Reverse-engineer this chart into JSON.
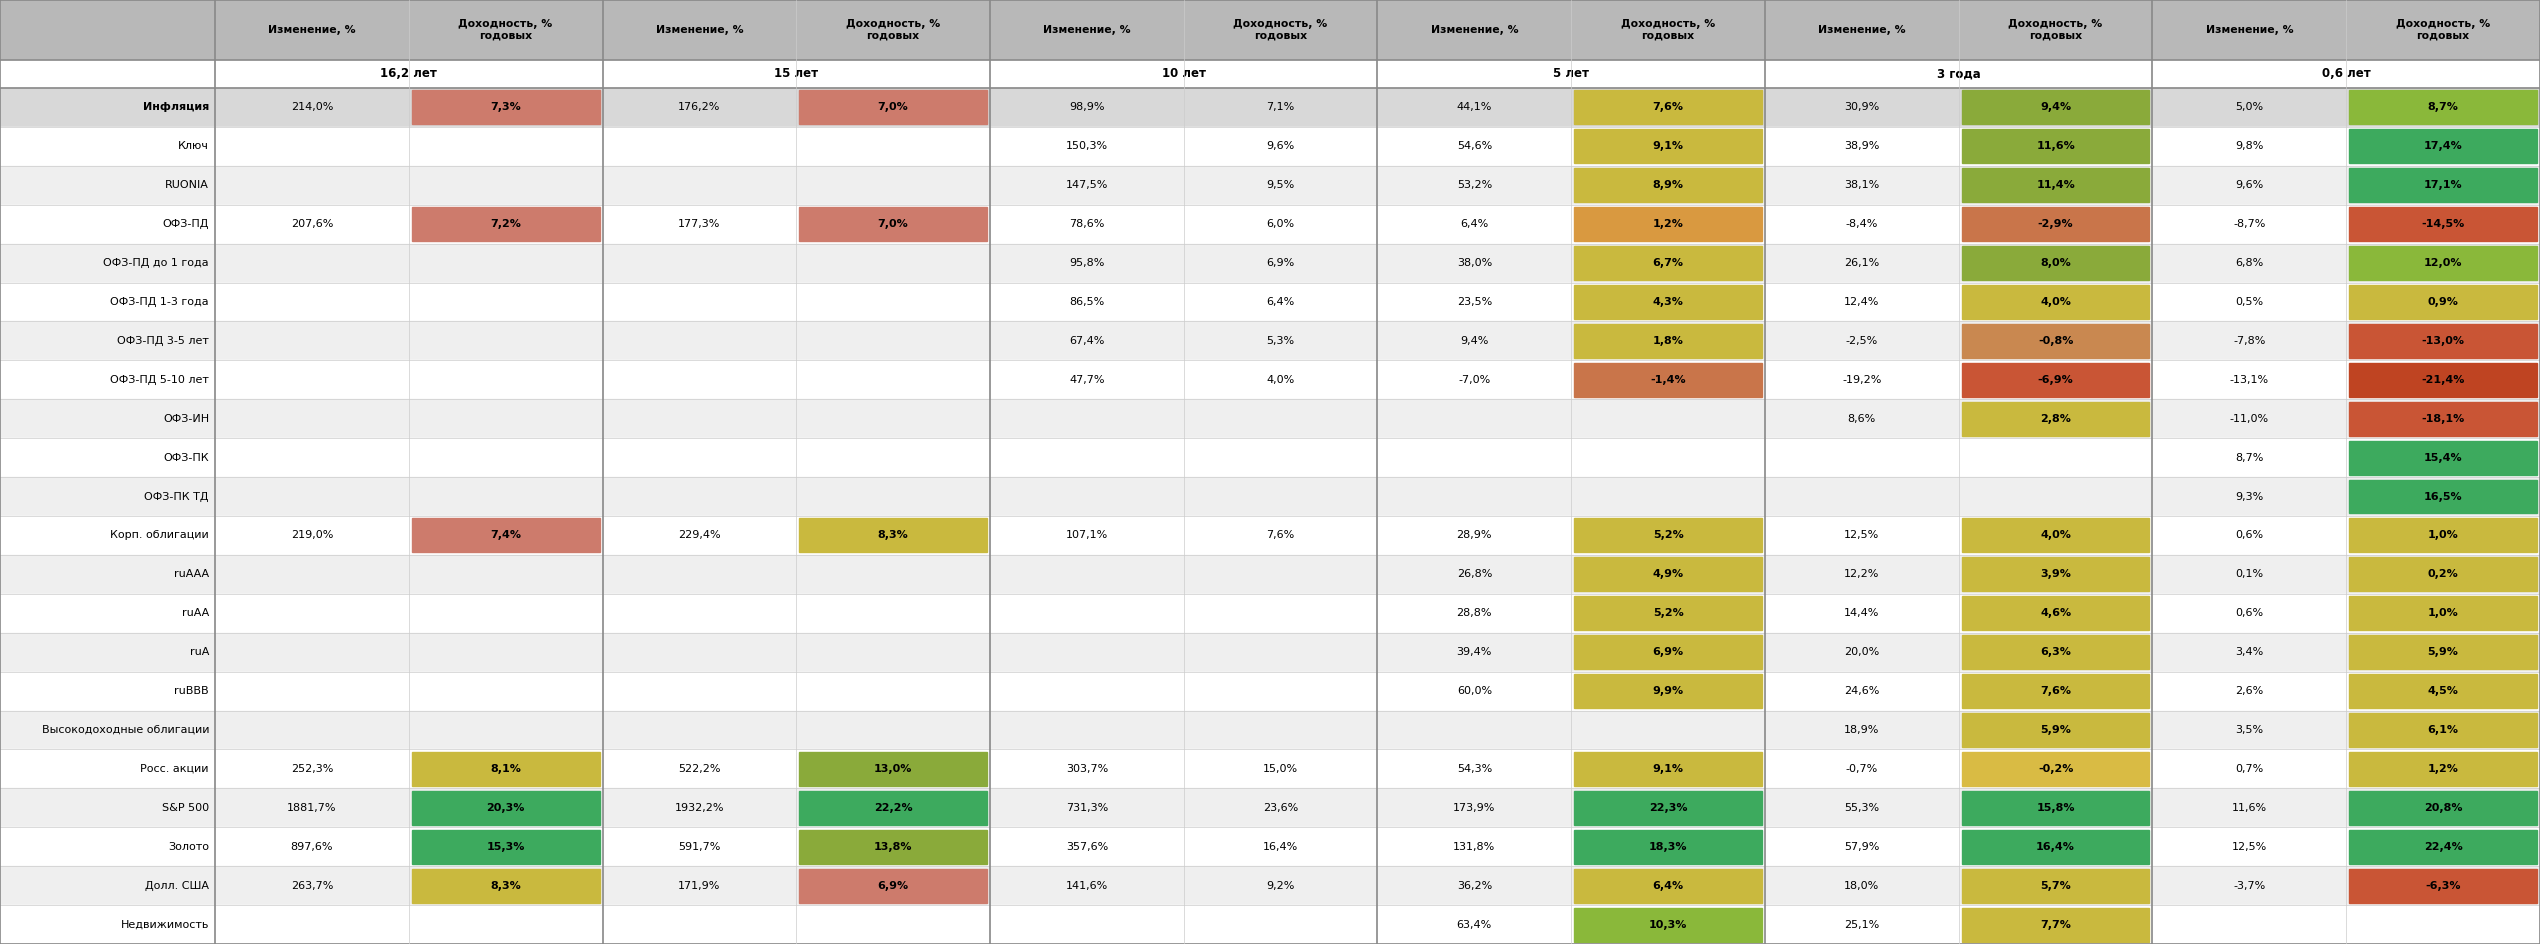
{
  "col_groups": [
    {
      "label": "16,2 лет"
    },
    {
      "label": "15 лет"
    },
    {
      "label": "10 лет"
    },
    {
      "label": "5 лет"
    },
    {
      "label": "3 года"
    },
    {
      "label": "0,6 лет"
    }
  ],
  "header_col1": "Изменение, %",
  "header_col2": "Доходность, %\nгодовых",
  "rows": [
    {
      "name": "Инфляция",
      "bold": true,
      "data": [
        "214,0%",
        "7,3%",
        "176,2%",
        "7,0%",
        "98,9%",
        "7,1%",
        "44,1%",
        "7,6%",
        "30,9%",
        "9,4%",
        "5,0%",
        "8,7%"
      ],
      "colors": [
        "",
        "#cd7b6c",
        "",
        "#cd7b6c",
        "",
        "",
        "",
        "#c9b93e",
        "",
        "#8aaa3a",
        "",
        "#8ab83a"
      ]
    },
    {
      "name": "Ключ",
      "bold": false,
      "data": [
        "",
        "",
        "",
        "",
        "150,3%",
        "9,6%",
        "54,6%",
        "9,1%",
        "38,9%",
        "11,6%",
        "9,8%",
        "17,4%"
      ],
      "colors": [
        "",
        "",
        "",
        "",
        "",
        "",
        "",
        "#c9b93e",
        "",
        "#8aaa3a",
        "",
        "#3daa5e"
      ]
    },
    {
      "name": "RUONIA",
      "bold": false,
      "data": [
        "",
        "",
        "",
        "",
        "147,5%",
        "9,5%",
        "53,2%",
        "8,9%",
        "38,1%",
        "11,4%",
        "9,6%",
        "17,1%"
      ],
      "colors": [
        "",
        "",
        "",
        "",
        "",
        "",
        "",
        "#c9b93e",
        "",
        "#8aaa3a",
        "",
        "#3daa5e"
      ]
    },
    {
      "name": "ОФЗ-ПД",
      "bold": false,
      "data": [
        "207,6%",
        "7,2%",
        "177,3%",
        "7,0%",
        "78,6%",
        "6,0%",
        "6,4%",
        "1,2%",
        "-8,4%",
        "-2,9%",
        "-8,7%",
        "-14,5%"
      ],
      "colors": [
        "",
        "#cd7b6c",
        "",
        "#cd7b6c",
        "",
        "",
        "",
        "#d99940",
        "",
        "#c9754a",
        "",
        "#c95535"
      ]
    },
    {
      "name": "ОФЗ-ПД до 1 года",
      "bold": false,
      "data": [
        "",
        "",
        "",
        "",
        "95,8%",
        "6,9%",
        "38,0%",
        "6,7%",
        "26,1%",
        "8,0%",
        "6,8%",
        "12,0%"
      ],
      "colors": [
        "",
        "",
        "",
        "",
        "",
        "",
        "",
        "#c9b93e",
        "",
        "#8aaa3a",
        "",
        "#8ab83a"
      ]
    },
    {
      "name": "ОФЗ-ПД 1-3 года",
      "bold": false,
      "data": [
        "",
        "",
        "",
        "",
        "86,5%",
        "6,4%",
        "23,5%",
        "4,3%",
        "12,4%",
        "4,0%",
        "0,5%",
        "0,9%"
      ],
      "colors": [
        "",
        "",
        "",
        "",
        "",
        "",
        "",
        "#c9b93e",
        "",
        "#c9b93e",
        "",
        "#c9b93e"
      ]
    },
    {
      "name": "ОФЗ-ПД 3-5 лет",
      "bold": false,
      "data": [
        "",
        "",
        "",
        "",
        "67,4%",
        "5,3%",
        "9,4%",
        "1,8%",
        "-2,5%",
        "-0,8%",
        "-7,8%",
        "-13,0%"
      ],
      "colors": [
        "",
        "",
        "",
        "",
        "",
        "",
        "",
        "#c9b93e",
        "",
        "#c98850",
        "",
        "#c95535"
      ]
    },
    {
      "name": "ОФЗ-ПД 5-10 лет",
      "bold": false,
      "data": [
        "",
        "",
        "",
        "",
        "47,7%",
        "4,0%",
        "-7,0%",
        "-1,4%",
        "-19,2%",
        "-6,9%",
        "-13,1%",
        "-21,4%"
      ],
      "colors": [
        "",
        "",
        "",
        "",
        "",
        "",
        "",
        "#c9754a",
        "",
        "#c95535",
        "",
        "#bf4422"
      ]
    },
    {
      "name": "ОФЗ-ИН",
      "bold": false,
      "data": [
        "",
        "",
        "",
        "",
        "",
        "",
        "",
        "",
        "8,6%",
        "2,8%",
        "-11,0%",
        "-18,1%"
      ],
      "colors": [
        "",
        "",
        "",
        "",
        "",
        "",
        "",
        "",
        "",
        "#c9b93e",
        "",
        "#c95535"
      ]
    },
    {
      "name": "ОФЗ-ПК",
      "bold": false,
      "data": [
        "",
        "",
        "",
        "",
        "",
        "",
        "",
        "",
        "",
        "",
        "8,7%",
        "15,4%"
      ],
      "colors": [
        "",
        "",
        "",
        "",
        "",
        "",
        "",
        "",
        "",
        "",
        "",
        "#3daa5e"
      ]
    },
    {
      "name": "ОФЗ-ПК ТД",
      "bold": false,
      "data": [
        "",
        "",
        "",
        "",
        "",
        "",
        "",
        "",
        "",
        "",
        "9,3%",
        "16,5%"
      ],
      "colors": [
        "",
        "",
        "",
        "",
        "",
        "",
        "",
        "",
        "",
        "",
        "",
        "#3daa5e"
      ]
    },
    {
      "name": "Корп. облигации",
      "bold": false,
      "data": [
        "219,0%",
        "7,4%",
        "229,4%",
        "8,3%",
        "107,1%",
        "7,6%",
        "28,9%",
        "5,2%",
        "12,5%",
        "4,0%",
        "0,6%",
        "1,0%"
      ],
      "colors": [
        "",
        "#cd7b6c",
        "",
        "#c9b93e",
        "",
        "",
        "",
        "#c9b93e",
        "",
        "#c9b93e",
        "",
        "#c9b93e"
      ]
    },
    {
      "name": "ruAAA",
      "bold": false,
      "data": [
        "",
        "",
        "",
        "",
        "",
        "",
        "26,8%",
        "4,9%",
        "12,2%",
        "3,9%",
        "0,1%",
        "0,2%"
      ],
      "colors": [
        "",
        "",
        "",
        "",
        "",
        "",
        "",
        "#c9b93e",
        "",
        "#c9b93e",
        "",
        "#c9b93e"
      ]
    },
    {
      "name": "ruAA",
      "bold": false,
      "data": [
        "",
        "",
        "",
        "",
        "",
        "",
        "28,8%",
        "5,2%",
        "14,4%",
        "4,6%",
        "0,6%",
        "1,0%"
      ],
      "colors": [
        "",
        "",
        "",
        "",
        "",
        "",
        "",
        "#c9b93e",
        "",
        "#c9b93e",
        "",
        "#c9b93e"
      ]
    },
    {
      "name": "ruA",
      "bold": false,
      "data": [
        "",
        "",
        "",
        "",
        "",
        "",
        "39,4%",
        "6,9%",
        "20,0%",
        "6,3%",
        "3,4%",
        "5,9%"
      ],
      "colors": [
        "",
        "",
        "",
        "",
        "",
        "",
        "",
        "#c9b93e",
        "",
        "#c9b93e",
        "",
        "#c9b93e"
      ]
    },
    {
      "name": "ruBBB",
      "bold": false,
      "data": [
        "",
        "",
        "",
        "",
        "",
        "",
        "60,0%",
        "9,9%",
        "24,6%",
        "7,6%",
        "2,6%",
        "4,5%"
      ],
      "colors": [
        "",
        "",
        "",
        "",
        "",
        "",
        "",
        "#c9b93e",
        "",
        "#c9b93e",
        "",
        "#c9b93e"
      ]
    },
    {
      "name": "Высокодоходные облигации",
      "bold": false,
      "data": [
        "",
        "",
        "",
        "",
        "",
        "",
        "",
        "",
        "18,9%",
        "5,9%",
        "3,5%",
        "6,1%"
      ],
      "colors": [
        "",
        "",
        "",
        "",
        "",
        "",
        "",
        "",
        "",
        "#c9b93e",
        "",
        "#c9b93e"
      ]
    },
    {
      "name": "Росс. акции",
      "bold": false,
      "data": [
        "252,3%",
        "8,1%",
        "522,2%",
        "13,0%",
        "303,7%",
        "15,0%",
        "54,3%",
        "9,1%",
        "-0,7%",
        "-0,2%",
        "0,7%",
        "1,2%"
      ],
      "colors": [
        "",
        "#c9b93e",
        "",
        "#8aaa3a",
        "",
        "",
        "",
        "#c9b93e",
        "",
        "#d9bb44",
        "",
        "#c9b93e"
      ]
    },
    {
      "name": "S&P 500",
      "bold": false,
      "data": [
        "1881,7%",
        "20,3%",
        "1932,2%",
        "22,2%",
        "731,3%",
        "23,6%",
        "173,9%",
        "22,3%",
        "55,3%",
        "15,8%",
        "11,6%",
        "20,8%"
      ],
      "colors": [
        "",
        "#3daa5e",
        "",
        "#3daa5e",
        "",
        "",
        "",
        "#3daa5e",
        "",
        "#3daa5e",
        "",
        "#3daa5e"
      ]
    },
    {
      "name": "Золото",
      "bold": false,
      "data": [
        "897,6%",
        "15,3%",
        "591,7%",
        "13,8%",
        "357,6%",
        "16,4%",
        "131,8%",
        "18,3%",
        "57,9%",
        "16,4%",
        "12,5%",
        "22,4%"
      ],
      "colors": [
        "",
        "#3daa5e",
        "",
        "#8aaa3a",
        "",
        "",
        "",
        "#3daa5e",
        "",
        "#3daa5e",
        "",
        "#3daa5e"
      ]
    },
    {
      "name": "Долл. США",
      "bold": false,
      "data": [
        "263,7%",
        "8,3%",
        "171,9%",
        "6,9%",
        "141,6%",
        "9,2%",
        "36,2%",
        "6,4%",
        "18,0%",
        "5,7%",
        "-3,7%",
        "-6,3%"
      ],
      "colors": [
        "",
        "#c9b93e",
        "",
        "#cd7b6c",
        "",
        "",
        "",
        "#c9b93e",
        "",
        "#c9b93e",
        "",
        "#c95535"
      ]
    },
    {
      "name": "Недвижимость",
      "bold": false,
      "data": [
        "",
        "",
        "",
        "",
        "",
        "",
        "63,4%",
        "10,3%",
        "25,1%",
        "7,7%",
        "",
        ""
      ],
      "colors": [
        "",
        "",
        "",
        "",
        "",
        "",
        "",
        "#8ab83a",
        "",
        "#c9b93e",
        "",
        ""
      ]
    }
  ],
  "fig_width": 25.4,
  "fig_height": 9.44,
  "header_bg": "#b8b8b8",
  "subheader_bg": "#ffffff",
  "bold_row_bg": "#d8d8d8",
  "row_bg_even": "#efefef",
  "row_bg_odd": "#ffffff",
  "border_color_thick": "#888888",
  "border_color_thin": "#cccccc",
  "text_color": "#000000",
  "header_fontsize": 7.8,
  "subheader_fontsize": 8.5,
  "row_fontsize": 8.0,
  "cell_fontsize": 8.0
}
